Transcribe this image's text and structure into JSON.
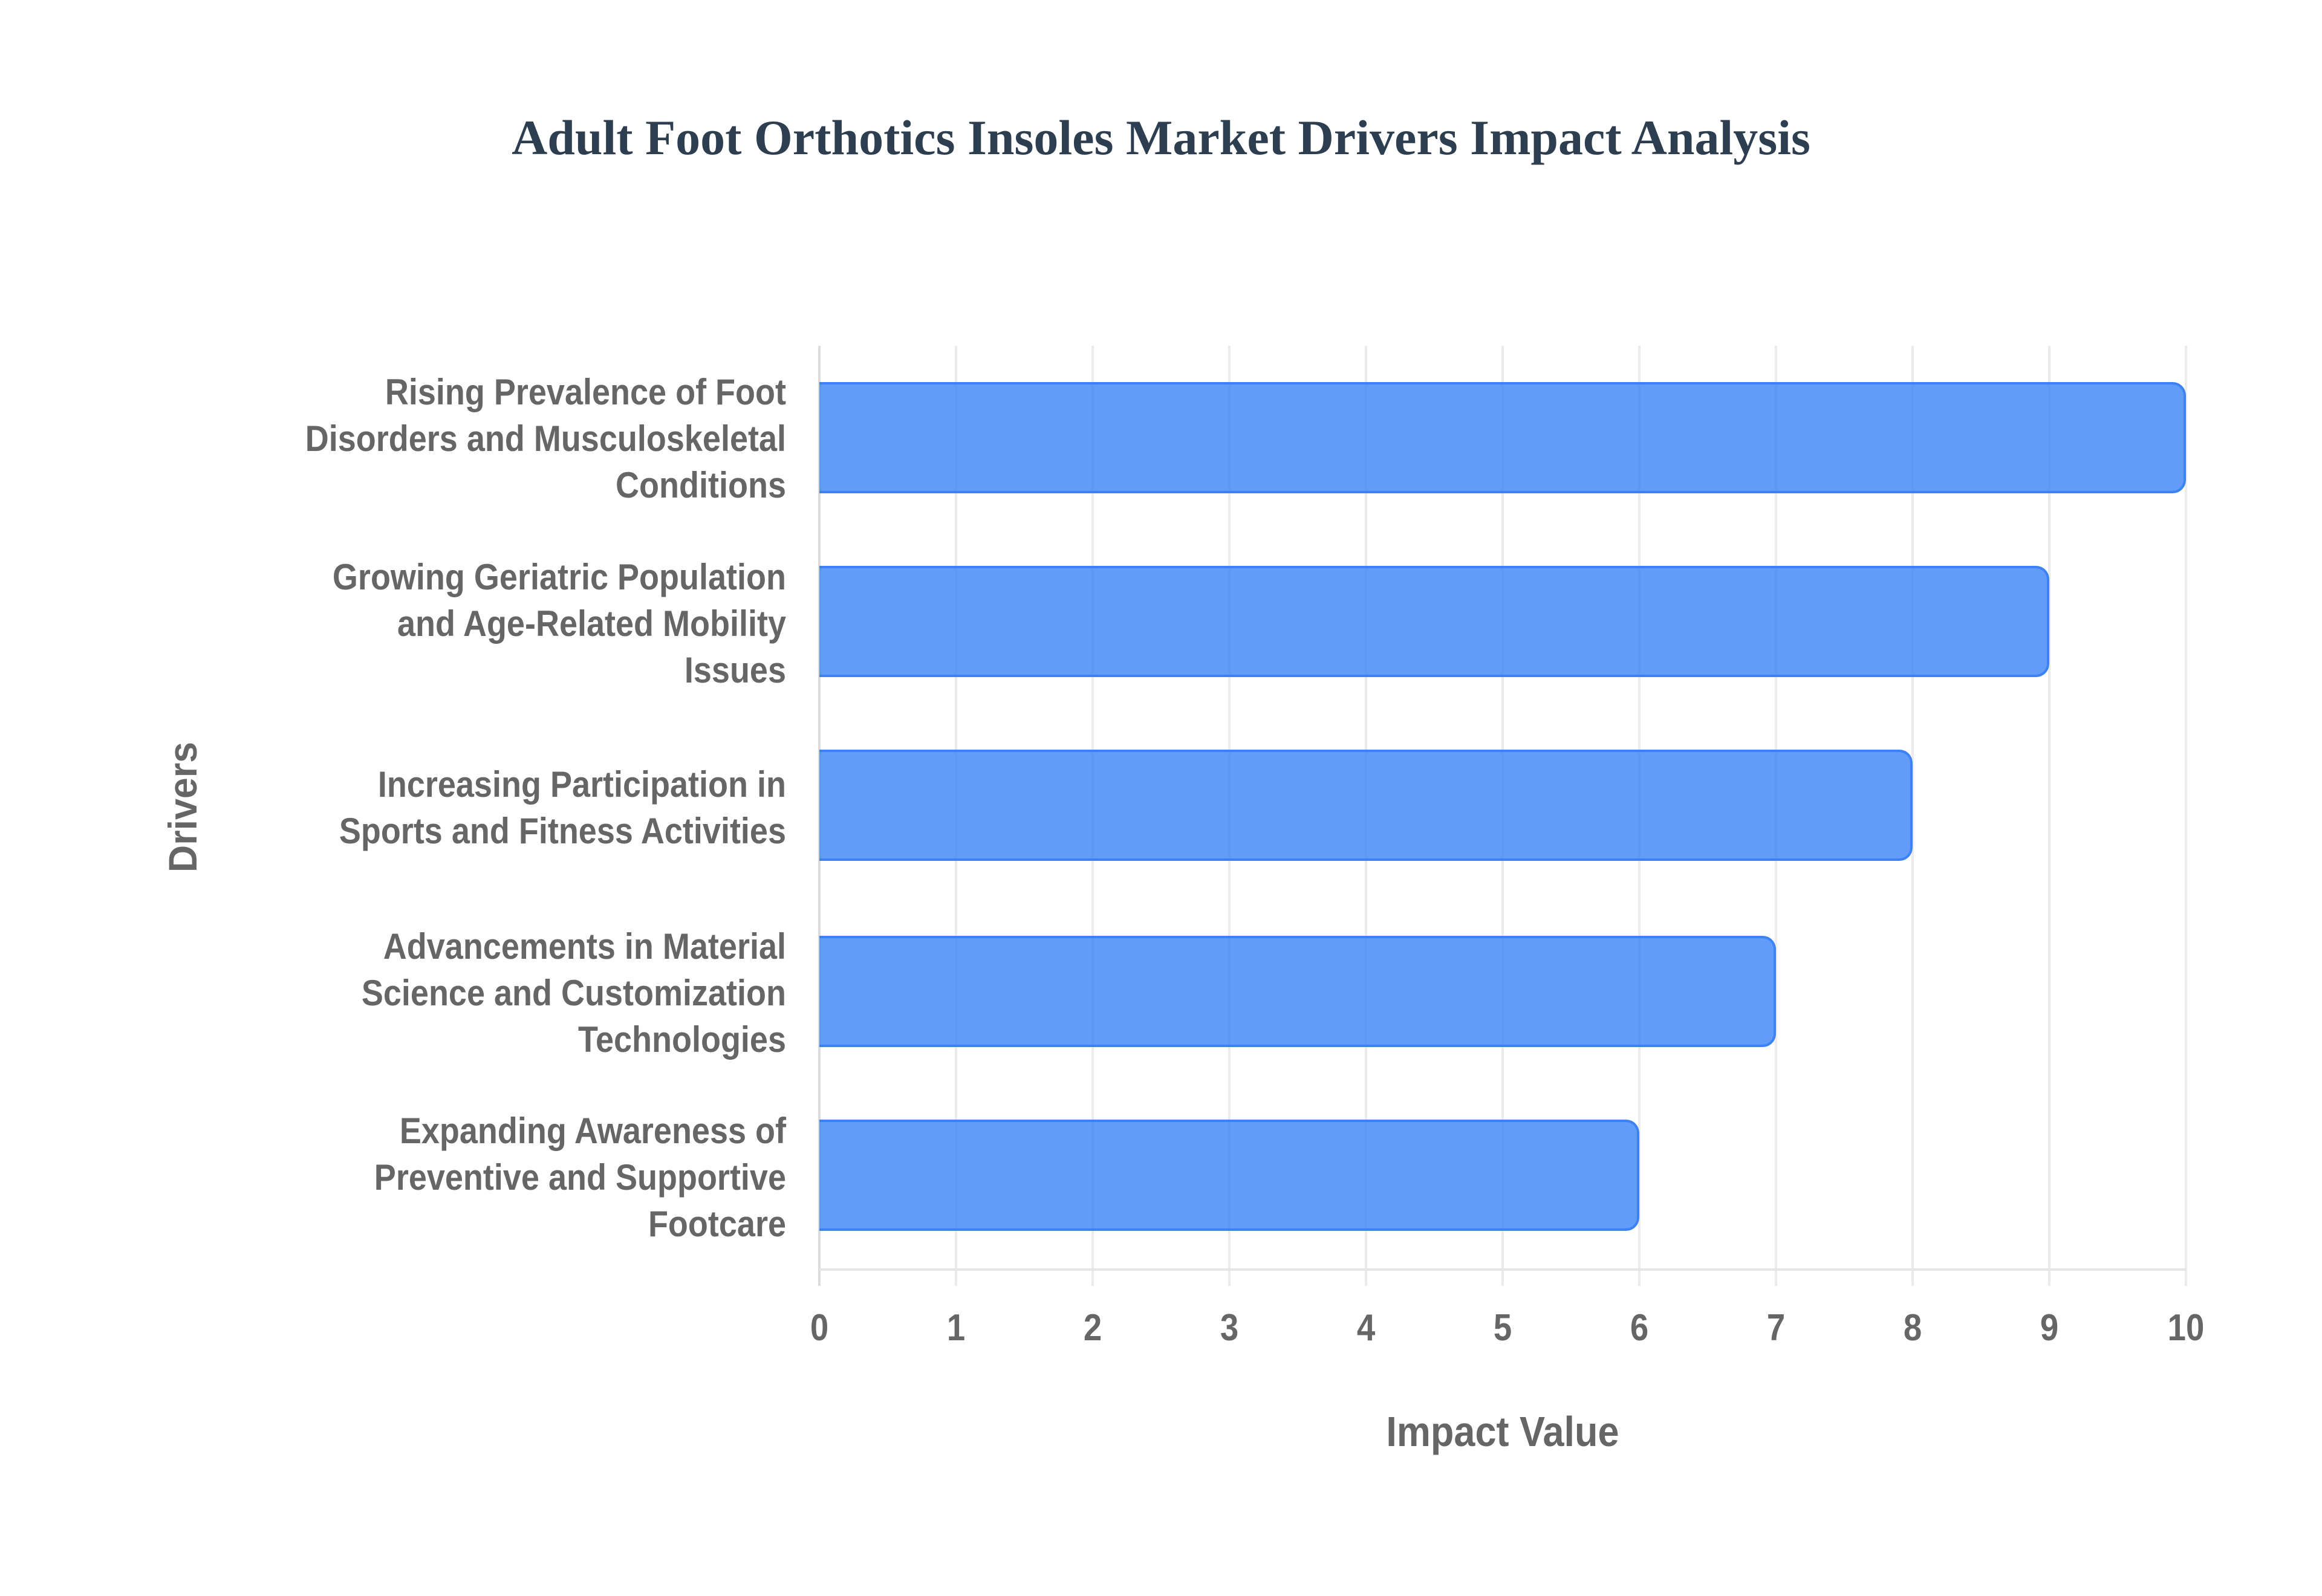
{
  "title": "Adult Foot Orthotics Insoles Market Drivers Impact Analysis",
  "colors": {
    "bar_fill": "#6399f5",
    "bar_border": "#3b82f6",
    "title": "#2c3e50",
    "axis_text": "#666666",
    "grid": "#ebebeb"
  },
  "axes": {
    "x_title": "Impact Value",
    "y_title": "Drivers",
    "x_ticks": [
      "0",
      "1",
      "2",
      "3",
      "4",
      "5",
      "6",
      "7",
      "8",
      "9",
      "10"
    ]
  },
  "drivers": [
    {
      "lines": [
        "Rising Prevalence of Foot",
        "Disorders and Musculoskeletal",
        "Conditions"
      ],
      "value": 10
    },
    {
      "lines": [
        "Growing Geriatric Population",
        "and Age-Related Mobility",
        "Issues"
      ],
      "value": 9
    },
    {
      "lines": [
        "Increasing Participation in",
        "Sports and Fitness Activities"
      ],
      "value": 8
    },
    {
      "lines": [
        "Advancements in Material",
        "Science and Customization",
        "Technologies"
      ],
      "value": 7
    },
    {
      "lines": [
        "Expanding Awareness of",
        "Preventive and Supportive",
        "Footcare"
      ],
      "value": 6
    }
  ],
  "chart_data": {
    "type": "bar",
    "orientation": "horizontal",
    "title": "Adult Foot Orthotics Insoles Market Drivers Impact Analysis",
    "xlabel": "Impact Value",
    "ylabel": "Drivers",
    "categories": [
      "Rising Prevalence of Foot Disorders and Musculoskeletal Conditions",
      "Growing Geriatric Population and Age-Related Mobility Issues",
      "Increasing Participation in Sports and Fitness Activities",
      "Advancements in Material Science and Customization Technologies",
      "Expanding Awareness of Preventive and Supportive Footcare"
    ],
    "values": [
      10,
      9,
      8,
      7,
      6
    ],
    "xlim": [
      0,
      10
    ],
    "x_ticks": [
      0,
      1,
      2,
      3,
      4,
      5,
      6,
      7,
      8,
      9,
      10
    ],
    "grid": true,
    "legend": "none"
  }
}
